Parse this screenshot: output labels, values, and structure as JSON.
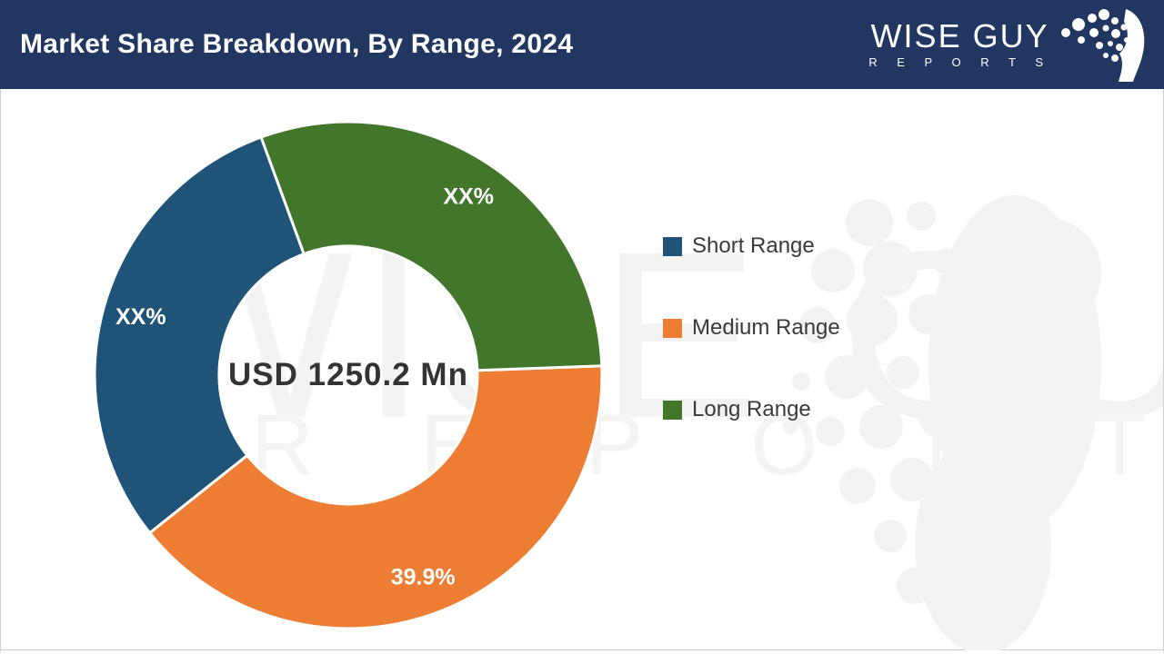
{
  "header": {
    "title": "Market Share Breakdown, By Range, 2024",
    "background_color": "#213761",
    "logo": {
      "name": "WISE GUY",
      "subtitle": "R E P O R T S"
    }
  },
  "watermark": {
    "line1": "WISE GUY",
    "line2": "REPORTS"
  },
  "chart_data": {
    "type": "pie",
    "subtype": "donut",
    "title": "Market Share Breakdown, By Range, 2024",
    "center_label": "USD 1250.2 Mn",
    "legend_position": "right",
    "segments": [
      {
        "name": "Short Range",
        "label": "XX%",
        "value_pct": 30.1,
        "start_deg": 231.5,
        "end_deg": 339.9,
        "color": "#1F5378"
      },
      {
        "name": "Medium Range",
        "label": "39.9%",
        "value_pct": 39.9,
        "start_deg": 87.9,
        "end_deg": 231.5,
        "color": "#EC7D33"
      },
      {
        "name": "Long Range",
        "label": "XX%",
        "value_pct": 30.0,
        "start_deg": 339.9,
        "end_deg": 87.9,
        "color": "#41762B"
      }
    ],
    "legend": [
      {
        "label": "Short Range",
        "color": "#1F5378"
      },
      {
        "label": "Medium Range",
        "color": "#EC7D33"
      },
      {
        "label": "Long Range",
        "color": "#41762B"
      }
    ]
  }
}
